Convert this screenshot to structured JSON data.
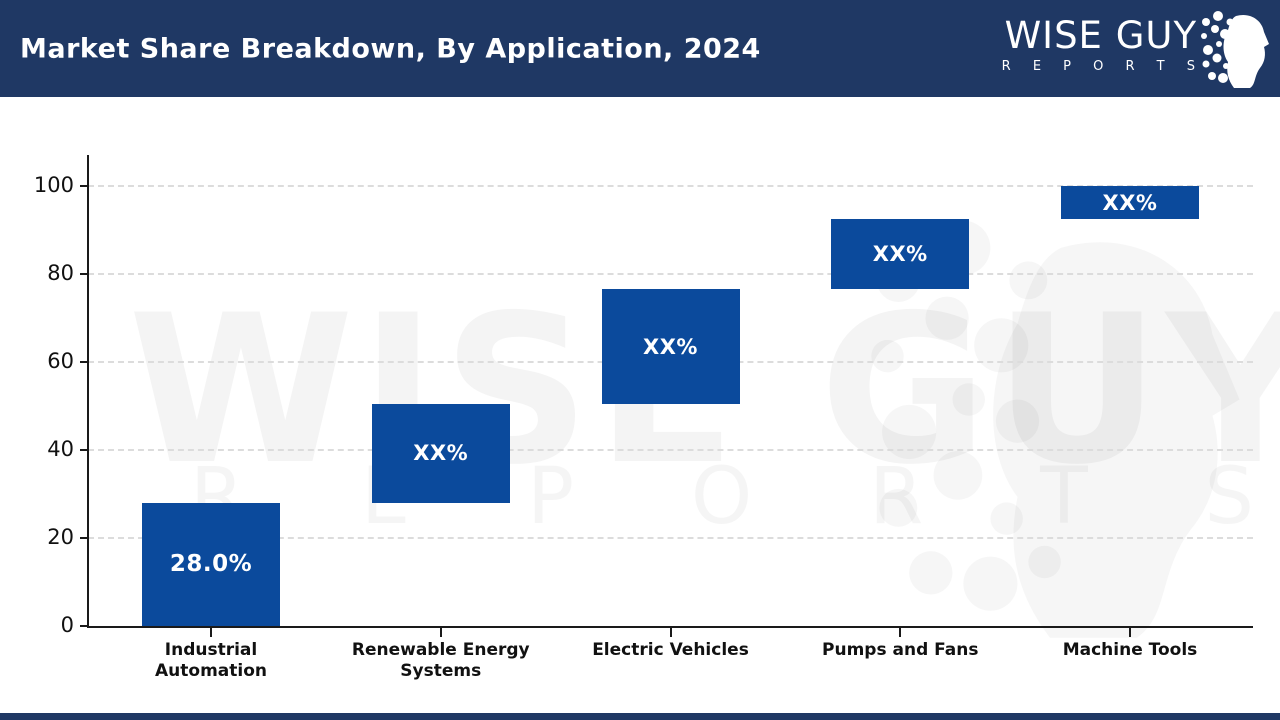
{
  "header": {
    "title": "Market Share Breakdown, By Application, 2024",
    "logo": {
      "name": "WISE GUY",
      "subtitle": "R E P O R T S"
    }
  },
  "watermark": {
    "line1": "WISE GUY",
    "line2": "R E P O R T S"
  },
  "colors": {
    "header_bg": "#1f3864",
    "bar": "#0b4a9c",
    "axis": "#1a1a1a",
    "gridline": "#dcdcdc",
    "bar_label_text": "#ffffff",
    "tick_text": "#111111"
  },
  "chart_data": {
    "type": "bar",
    "subtype": "waterfall",
    "title": "Market Share Breakdown, By Application, 2024",
    "categories": [
      "Industrial Automation",
      "Renewable Energy Systems",
      "Electric Vehicles",
      "Pumps and Fans",
      "Machine Tools"
    ],
    "category_label_lines": [
      [
        "Industrial",
        "Automation"
      ],
      [
        "Renewable Energy",
        "Systems"
      ],
      [
        "Electric Vehicles"
      ],
      [
        "Pumps and Fans"
      ],
      [
        "Machine Tools"
      ]
    ],
    "bars": [
      {
        "category": "Industrial Automation",
        "start": 0,
        "end": 28,
        "value_label": "28.0%"
      },
      {
        "category": "Renewable Energy Systems",
        "start": 28,
        "end": 50.5,
        "value_label": "XX%"
      },
      {
        "category": "Electric Vehicles",
        "start": 50.5,
        "end": 76.5,
        "value_label": "XX%"
      },
      {
        "category": "Pumps and Fans",
        "start": 76.5,
        "end": 92.5,
        "value_label": "XX%"
      },
      {
        "category": "Machine Tools",
        "start": 92.5,
        "end": 100,
        "value_label": "XX%"
      }
    ],
    "yticks": [
      0,
      20,
      40,
      60,
      80,
      100
    ],
    "ylim": [
      0,
      107
    ],
    "xlabel": "",
    "ylabel": "",
    "grid": "dashed-horizontal",
    "legend": "none"
  }
}
